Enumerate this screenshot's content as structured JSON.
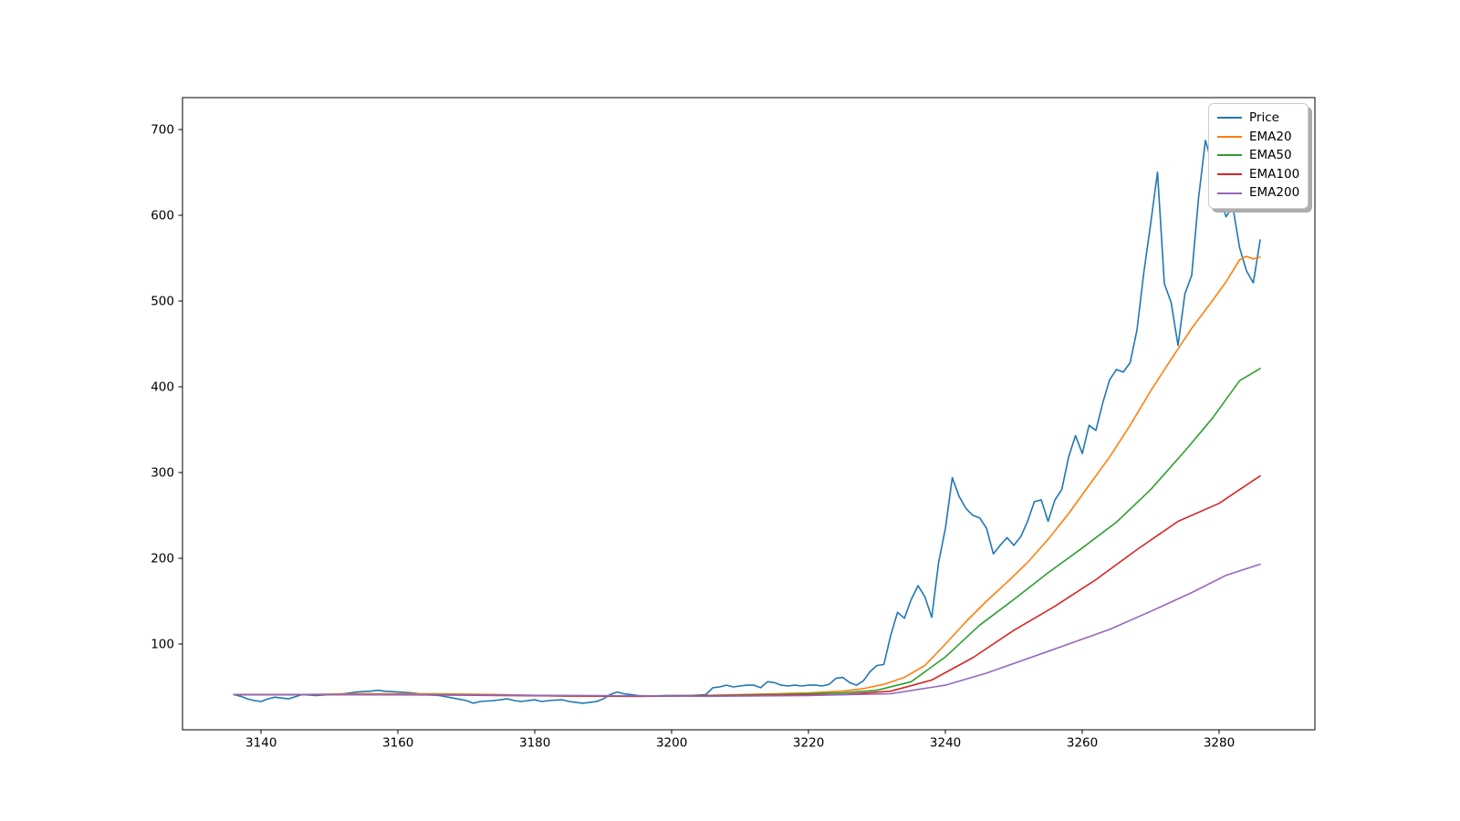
{
  "figure": {
    "background": "#ffffff",
    "title": ""
  },
  "chart_data": {
    "type": "line",
    "title": "",
    "xlabel": "",
    "ylabel": "",
    "grid": false,
    "xlim": [
      3128.5,
      3294
    ],
    "ylim": [
      0,
      737
    ],
    "x_ticks": [
      3140,
      3160,
      3180,
      3200,
      3220,
      3240,
      3260,
      3280
    ],
    "y_ticks": [
      100,
      200,
      300,
      400,
      500,
      600,
      700
    ],
    "legend": {
      "position": "upper right",
      "entries": [
        "Price",
        "EMA20",
        "EMA50",
        "EMA100",
        "EMA200"
      ]
    },
    "series": [
      {
        "name": "Price",
        "color": "#1f77b4",
        "x": [
          3136,
          3137,
          3138,
          3139,
          3140,
          3141,
          3142,
          3144,
          3146,
          3148,
          3150,
          3152,
          3154,
          3156,
          3157,
          3158,
          3160,
          3162,
          3164,
          3166,
          3168,
          3170,
          3171,
          3172,
          3174,
          3176,
          3177,
          3178,
          3180,
          3181,
          3182,
          3184,
          3185,
          3186,
          3187,
          3188,
          3189,
          3190,
          3191,
          3192,
          3193,
          3194,
          3195,
          3197,
          3199,
          3201,
          3203,
          3205,
          3206,
          3207,
          3208,
          3209,
          3210,
          3211,
          3212,
          3213,
          3214,
          3215,
          3216,
          3217,
          3218,
          3219,
          3220,
          3221,
          3222,
          3223,
          3224,
          3225,
          3226,
          3227,
          3228,
          3229,
          3230,
          3231,
          3232,
          3233,
          3234,
          3235,
          3236,
          3237,
          3238,
          3239,
          3240,
          3241,
          3242,
          3243,
          3244,
          3245,
          3246,
          3247,
          3248,
          3249,
          3250,
          3251,
          3252,
          3253,
          3254,
          3255,
          3256,
          3257,
          3258,
          3259,
          3260,
          3261,
          3262,
          3263,
          3264,
          3265,
          3266,
          3267,
          3268,
          3269,
          3270,
          3271,
          3272,
          3273,
          3274,
          3275,
          3276,
          3277,
          3278,
          3279,
          3280,
          3281,
          3282,
          3283,
          3284,
          3285,
          3286
        ],
        "y": [
          41,
          39,
          36,
          34,
          33,
          36,
          38,
          36,
          41,
          40,
          41,
          42,
          44,
          45,
          46,
          45,
          44,
          43,
          41,
          40,
          37,
          34,
          31,
          33,
          34,
          36,
          34,
          33,
          35,
          33,
          34,
          35,
          33,
          32,
          31,
          32,
          33,
          36,
          41,
          44,
          42,
          41,
          40,
          39,
          40,
          40,
          40,
          41,
          49,
          50,
          52,
          50,
          51,
          52,
          52,
          49,
          56,
          55,
          52,
          51,
          52,
          51,
          52,
          52,
          51,
          53,
          60,
          61,
          55,
          52,
          57,
          68,
          75,
          76,
          110,
          137,
          130,
          152,
          168,
          155,
          131,
          195,
          235,
          294,
          272,
          258,
          250,
          247,
          235,
          205,
          215,
          224,
          215,
          225,
          243,
          266,
          268,
          243,
          268,
          280,
          318,
          343,
          322,
          355,
          349,
          381,
          408,
          420,
          417,
          428,
          466,
          533,
          590,
          650,
          520,
          498,
          448,
          508,
          530,
          620,
          687,
          660,
          625,
          598,
          610,
          562,
          535,
          521,
          571
        ]
      },
      {
        "name": "EMA20",
        "color": "#ff7f0e",
        "x": [
          3136,
          3145,
          3155,
          3165,
          3175,
          3185,
          3195,
          3205,
          3210,
          3215,
          3220,
          3225,
          3228,
          3231,
          3234,
          3237,
          3240,
          3243,
          3246,
          3249,
          3252,
          3255,
          3258,
          3261,
          3264,
          3267,
          3270,
          3273,
          3276,
          3279,
          3281,
          3283,
          3284,
          3285,
          3286
        ],
        "y": [
          41,
          41,
          42,
          42,
          41,
          39,
          39,
          40,
          41,
          42,
          43,
          45,
          48,
          53,
          61,
          75,
          100,
          126,
          150,
          172,
          195,
          222,
          252,
          285,
          318,
          355,
          395,
          432,
          468,
          500,
          522,
          548,
          552,
          549,
          551
        ]
      },
      {
        "name": "EMA50",
        "color": "#2ca02c",
        "x": [
          3136,
          3150,
          3165,
          3180,
          3195,
          3205,
          3215,
          3225,
          3230,
          3235,
          3240,
          3245,
          3250,
          3255,
          3260,
          3265,
          3270,
          3275,
          3279,
          3283,
          3286
        ],
        "y": [
          41,
          41,
          41,
          40,
          39,
          40,
          41,
          43,
          46,
          56,
          85,
          122,
          152,
          183,
          212,
          242,
          280,
          325,
          363,
          407,
          421
        ]
      },
      {
        "name": "EMA100",
        "color": "#d62728",
        "x": [
          3136,
          3155,
          3175,
          3195,
          3210,
          3225,
          3232,
          3238,
          3244,
          3250,
          3256,
          3262,
          3268,
          3274,
          3280,
          3283,
          3286
        ],
        "y": [
          41,
          41,
          40,
          39,
          40,
          41,
          45,
          58,
          84,
          116,
          144,
          175,
          210,
          243,
          264,
          280,
          296
        ]
      },
      {
        "name": "EMA200",
        "color": "#9467bd",
        "x": [
          3136,
          3160,
          3185,
          3205,
          3220,
          3232,
          3240,
          3246,
          3252,
          3258,
          3264,
          3270,
          3276,
          3281,
          3286
        ],
        "y": [
          41,
          41,
          40,
          39,
          40,
          42,
          52,
          66,
          83,
          100,
          117,
          138,
          160,
          180,
          193
        ]
      }
    ]
  }
}
